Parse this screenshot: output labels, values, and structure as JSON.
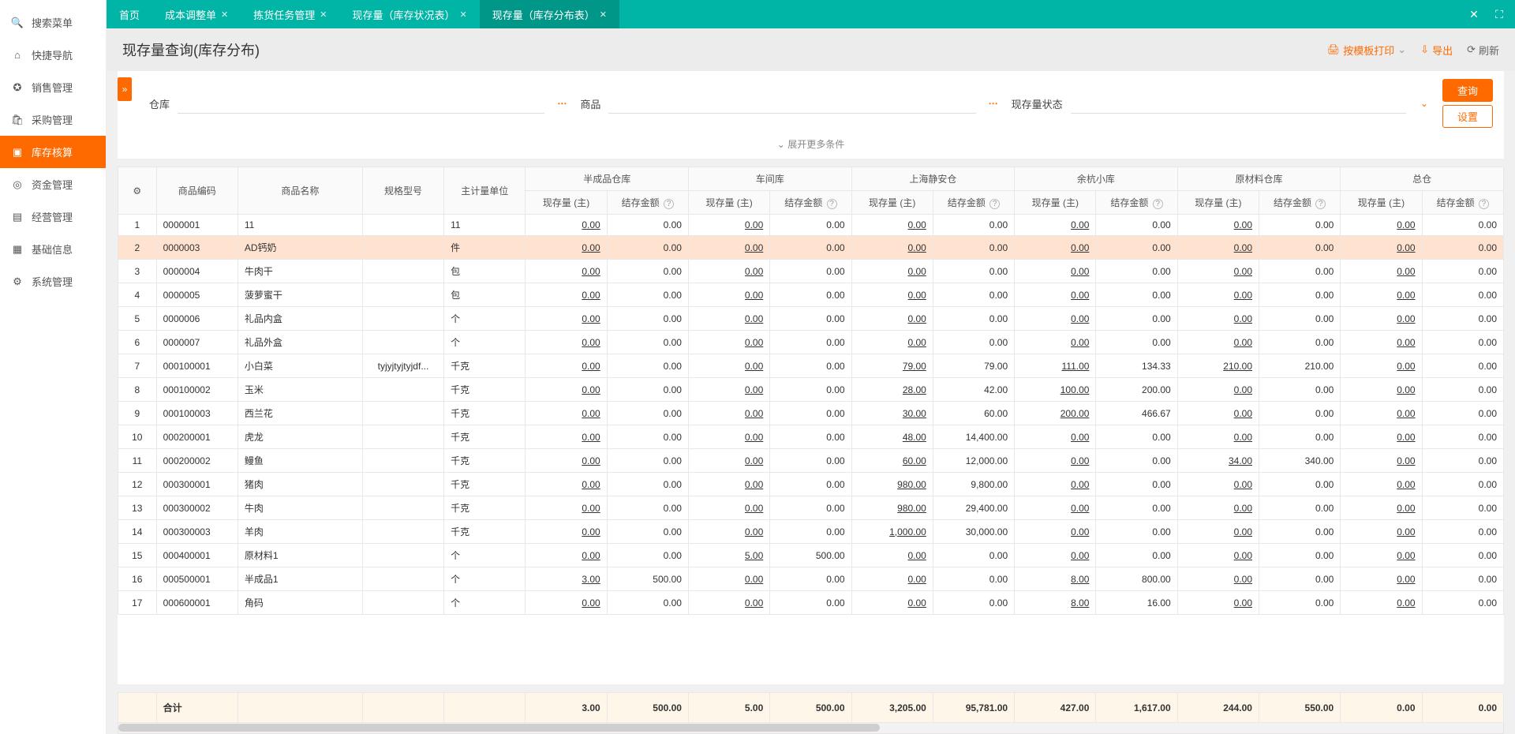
{
  "colors": {
    "primary": "#ff6a00",
    "teal": "#00b5a5",
    "tealDark": "#009688",
    "rowHighlight": "#ffe3d0",
    "totalsBg": "#fdf6e9"
  },
  "sidebar": {
    "items": [
      {
        "label": "搜索菜单",
        "icon": "search"
      },
      {
        "label": "快捷导航",
        "icon": "home"
      },
      {
        "label": "销售管理",
        "icon": "badge"
      },
      {
        "label": "采购管理",
        "icon": "bag"
      },
      {
        "label": "库存核算",
        "icon": "box",
        "active": true
      },
      {
        "label": "资金管理",
        "icon": "coin"
      },
      {
        "label": "经营管理",
        "icon": "doc"
      },
      {
        "label": "基础信息",
        "icon": "layers"
      },
      {
        "label": "系统管理",
        "icon": "gear"
      }
    ]
  },
  "tabs": {
    "items": [
      {
        "label": "首页",
        "closable": false
      },
      {
        "label": "成本调整单",
        "closable": true
      },
      {
        "label": "拣货任务管理",
        "closable": true
      },
      {
        "label": "现存量（库存状况表）",
        "closable": true
      },
      {
        "label": "现存量（库存分布表）",
        "closable": true,
        "active": true
      }
    ]
  },
  "page": {
    "title": "现存量查询(库存分布)",
    "actions": {
      "print": "按模板打印",
      "export": "导出",
      "refresh": "刷新"
    }
  },
  "filters": {
    "warehouse": "仓库",
    "product": "商品",
    "status": "现存量状态",
    "queryBtn": "查询",
    "settingsBtn": "设置",
    "expandMore": "展开更多条件"
  },
  "table": {
    "headers": {
      "gear": "⚙",
      "code": "商品编码",
      "name": "商品名称",
      "spec": "规格型号",
      "unit": "主计量单位",
      "groups": [
        "半成品仓库",
        "车间库",
        "上海静安仓",
        "余杭小库",
        "原材料仓库",
        "总仓"
      ],
      "qty": "现存量 (主)",
      "amt": "结存金额",
      "help": "?"
    },
    "rows": [
      {
        "i": 1,
        "code": "0000001",
        "name": "11",
        "spec": "",
        "unit": "11",
        "v": [
          "0.00",
          "0.00",
          "0.00",
          "0.00",
          "0.00",
          "0.00",
          "0.00",
          "0.00",
          "0.00",
          "0.00",
          "0.00",
          "0.00"
        ]
      },
      {
        "i": 2,
        "hl": true,
        "code": "0000003",
        "name": "AD钙奶",
        "spec": "",
        "unit": "件",
        "v": [
          "0.00",
          "0.00",
          "0.00",
          "0.00",
          "0.00",
          "0.00",
          "0.00",
          "0.00",
          "0.00",
          "0.00",
          "0.00",
          "0.00"
        ]
      },
      {
        "i": 3,
        "code": "0000004",
        "name": "牛肉干",
        "spec": "",
        "unit": "包",
        "v": [
          "0.00",
          "0.00",
          "0.00",
          "0.00",
          "0.00",
          "0.00",
          "0.00",
          "0.00",
          "0.00",
          "0.00",
          "0.00",
          "0.00"
        ]
      },
      {
        "i": 4,
        "code": "0000005",
        "name": "菠萝蜜干",
        "spec": "",
        "unit": "包",
        "v": [
          "0.00",
          "0.00",
          "0.00",
          "0.00",
          "0.00",
          "0.00",
          "0.00",
          "0.00",
          "0.00",
          "0.00",
          "0.00",
          "0.00"
        ]
      },
      {
        "i": 5,
        "code": "0000006",
        "name": "礼品内盒",
        "spec": "",
        "unit": "个",
        "v": [
          "0.00",
          "0.00",
          "0.00",
          "0.00",
          "0.00",
          "0.00",
          "0.00",
          "0.00",
          "0.00",
          "0.00",
          "0.00",
          "0.00"
        ]
      },
      {
        "i": 6,
        "code": "0000007",
        "name": "礼品外盒",
        "spec": "",
        "unit": "个",
        "v": [
          "0.00",
          "0.00",
          "0.00",
          "0.00",
          "0.00",
          "0.00",
          "0.00",
          "0.00",
          "0.00",
          "0.00",
          "0.00",
          "0.00"
        ]
      },
      {
        "i": 7,
        "code": "000100001",
        "name": "小白菜",
        "spec": "tyjyjtyjtyjdf...",
        "unit": "千克",
        "v": [
          "0.00",
          "0.00",
          "0.00",
          "0.00",
          "79.00",
          "79.00",
          "111.00",
          "134.33",
          "210.00",
          "210.00",
          "0.00",
          "0.00"
        ]
      },
      {
        "i": 8,
        "code": "000100002",
        "name": "玉米",
        "spec": "",
        "unit": "千克",
        "v": [
          "0.00",
          "0.00",
          "0.00",
          "0.00",
          "28.00",
          "42.00",
          "100.00",
          "200.00",
          "0.00",
          "0.00",
          "0.00",
          "0.00"
        ]
      },
      {
        "i": 9,
        "code": "000100003",
        "name": "西兰花",
        "spec": "",
        "unit": "千克",
        "v": [
          "0.00",
          "0.00",
          "0.00",
          "0.00",
          "30.00",
          "60.00",
          "200.00",
          "466.67",
          "0.00",
          "0.00",
          "0.00",
          "0.00"
        ]
      },
      {
        "i": 10,
        "code": "000200001",
        "name": "虎龙",
        "spec": "",
        "unit": "千克",
        "v": [
          "0.00",
          "0.00",
          "0.00",
          "0.00",
          "48.00",
          "14,400.00",
          "0.00",
          "0.00",
          "0.00",
          "0.00",
          "0.00",
          "0.00"
        ]
      },
      {
        "i": 11,
        "code": "000200002",
        "name": "鳗鱼",
        "spec": "",
        "unit": "千克",
        "v": [
          "0.00",
          "0.00",
          "0.00",
          "0.00",
          "60.00",
          "12,000.00",
          "0.00",
          "0.00",
          "34.00",
          "340.00",
          "0.00",
          "0.00"
        ]
      },
      {
        "i": 12,
        "code": "000300001",
        "name": "猪肉",
        "spec": "",
        "unit": "千克",
        "v": [
          "0.00",
          "0.00",
          "0.00",
          "0.00",
          "980.00",
          "9,800.00",
          "0.00",
          "0.00",
          "0.00",
          "0.00",
          "0.00",
          "0.00"
        ]
      },
      {
        "i": 13,
        "code": "000300002",
        "name": "牛肉",
        "spec": "",
        "unit": "千克",
        "v": [
          "0.00",
          "0.00",
          "0.00",
          "0.00",
          "980.00",
          "29,400.00",
          "0.00",
          "0.00",
          "0.00",
          "0.00",
          "0.00",
          "0.00"
        ]
      },
      {
        "i": 14,
        "code": "000300003",
        "name": "羊肉",
        "spec": "",
        "unit": "千克",
        "v": [
          "0.00",
          "0.00",
          "0.00",
          "0.00",
          "1,000.00",
          "30,000.00",
          "0.00",
          "0.00",
          "0.00",
          "0.00",
          "0.00",
          "0.00"
        ]
      },
      {
        "i": 15,
        "code": "000400001",
        "name": "原材料1",
        "spec": "",
        "unit": "个",
        "v": [
          "0.00",
          "0.00",
          "5.00",
          "500.00",
          "0.00",
          "0.00",
          "0.00",
          "0.00",
          "0.00",
          "0.00",
          "0.00",
          "0.00"
        ]
      },
      {
        "i": 16,
        "code": "000500001",
        "name": "半成品1",
        "spec": "",
        "unit": "个",
        "v": [
          "3.00",
          "500.00",
          "0.00",
          "0.00",
          "0.00",
          "0.00",
          "8.00",
          "800.00",
          "0.00",
          "0.00",
          "0.00",
          "0.00"
        ]
      },
      {
        "i": 17,
        "code": "000600001",
        "name": "角码",
        "spec": "",
        "unit": "个",
        "v": [
          "0.00",
          "0.00",
          "0.00",
          "0.00",
          "0.00",
          "0.00",
          "8.00",
          "16.00",
          "0.00",
          "0.00",
          "0.00",
          "0.00"
        ]
      }
    ],
    "totals": {
      "label": "合计",
      "v": [
        "3.00",
        "500.00",
        "5.00",
        "500.00",
        "3,205.00",
        "95,781.00",
        "427.00",
        "1,617.00",
        "244.00",
        "550.00",
        "0.00",
        "0.00"
      ]
    }
  }
}
